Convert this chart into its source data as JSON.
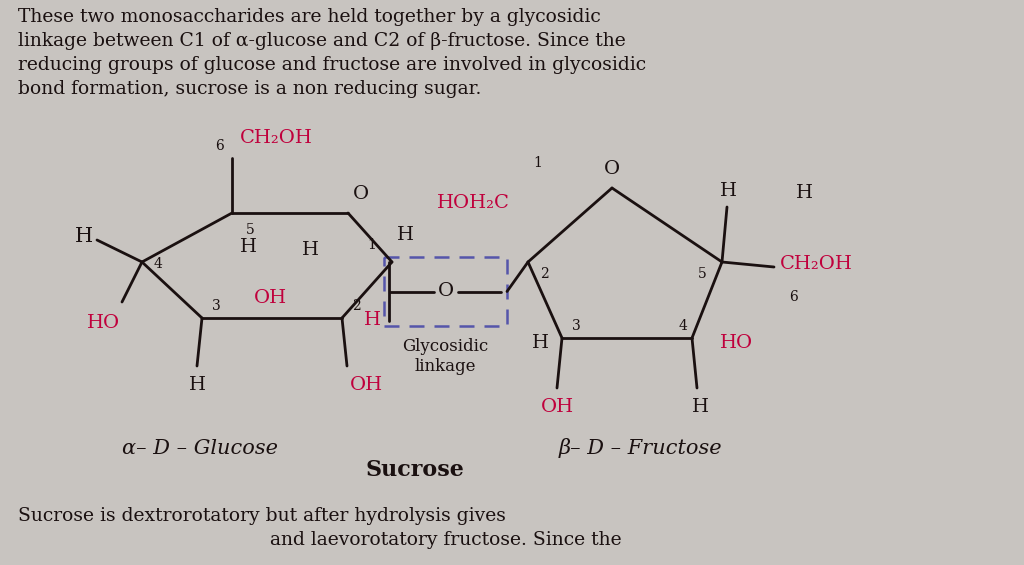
{
  "bg_color": "#c8c4c0",
  "text_color_black": "#1a1010",
  "text_color_red": "#c0003c",
  "label_glucose": "α– D – Glucose",
  "label_fructose": "β– D – Fructose",
  "label_sucrose": "Sucrose",
  "label_glycosidic": "Glycosidic\nlinkage",
  "top_text_lines": [
    "These two monosaccharides are held together by a glycosidic",
    "linkage between C1 of α-glucose and C2 of β-fructose. Since the",
    "reducing groups of glucose and fructose are involved in glycosidic",
    "bond formation, sucrose is a non reducing sugar."
  ],
  "bottom_text_lines": [
    "Sucrose is dextrorotatory but after hydrolysis gives",
    "                                          and laevorotatory fructose. Since the"
  ]
}
